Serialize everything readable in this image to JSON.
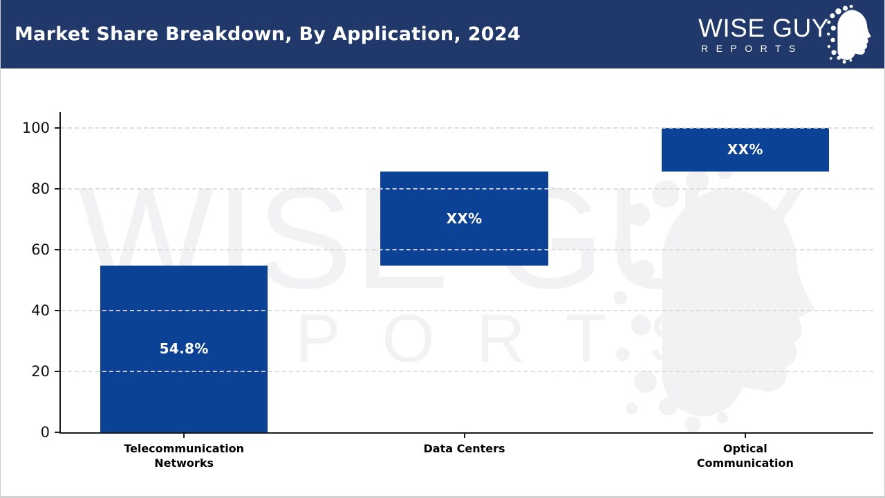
{
  "header": {
    "title": "Market Share Breakdown, By Application, 2024",
    "logo": {
      "line1": "WISE GUY",
      "line2": "REPORTS"
    }
  },
  "watermark": {
    "line1": "WISE GUY",
    "line2": "REPORTS"
  },
  "colors": {
    "header_bg": "#20386a",
    "bar": "#0b4296",
    "bar_label": "#ffffff",
    "grid": "#d9d9db",
    "axis": "#1a1a1a",
    "watermark": "#f2f2f5"
  },
  "chart_data": {
    "type": "bar",
    "variant": "waterfall",
    "title": "Market Share Breakdown, By Application, 2024",
    "xlabel": "",
    "ylabel": "",
    "ylim": [
      0,
      100
    ],
    "yticks": [
      0,
      20,
      40,
      60,
      80,
      100
    ],
    "grid": "horizontal-dashed",
    "legend": "none",
    "categories": [
      "Telecommunication Networks",
      "Data Centers",
      "Optical Communication"
    ],
    "category_lines": [
      [
        "Telecommunication",
        "Networks"
      ],
      [
        "Data Centers"
      ],
      [
        "Optical",
        "Communication"
      ]
    ],
    "segments": [
      {
        "category": "Telecommunication Networks",
        "start": 0,
        "end": 54.8,
        "label": "54.8%"
      },
      {
        "category": "Data Centers",
        "start": 54.8,
        "end": 85.7,
        "label": "XX%"
      },
      {
        "category": "Optical Communication",
        "start": 85.7,
        "end": 100,
        "label": "XX%"
      }
    ]
  }
}
